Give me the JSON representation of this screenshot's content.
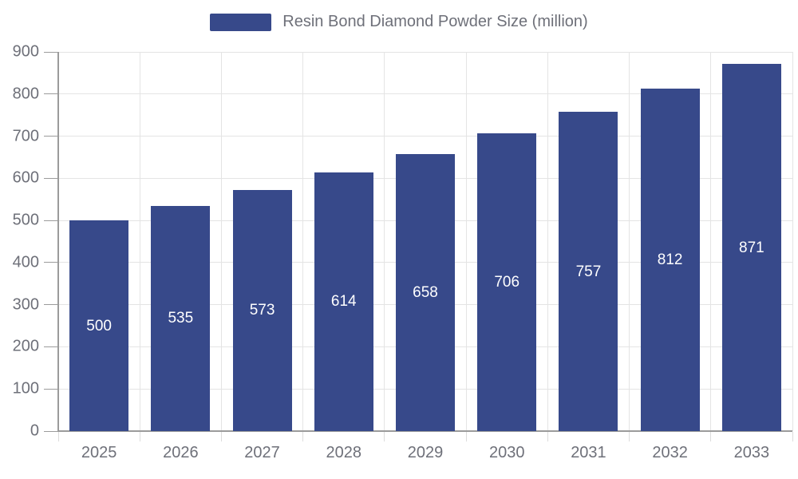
{
  "chart_data": {
    "type": "bar",
    "title": "Resin Bond Diamond Powder Size (million)",
    "categories": [
      "2025",
      "2026",
      "2027",
      "2028",
      "2029",
      "2030",
      "2031",
      "2032",
      "2033"
    ],
    "values": [
      500,
      535,
      573,
      614,
      658,
      706,
      757,
      812,
      871
    ],
    "series": [
      {
        "name": "Resin Bond Diamond Powder Size (million)",
        "values": [
          500,
          535,
          573,
          614,
          658,
          706,
          757,
          812,
          871
        ]
      }
    ],
    "xlabel": "",
    "ylabel": "",
    "ylim": [
      0,
      900
    ],
    "yticks": [
      0,
      100,
      200,
      300,
      400,
      500,
      600,
      700,
      800,
      900
    ],
    "grid": true,
    "legend_position": "top-center",
    "colors": {
      "bar": "#37498a",
      "value_label": "#ffffff",
      "axis_text": "#6e7079",
      "grid_line": "#e4e4e4",
      "axis_line": "#9b9b9b",
      "x_tick": "#dcdcdc"
    }
  }
}
